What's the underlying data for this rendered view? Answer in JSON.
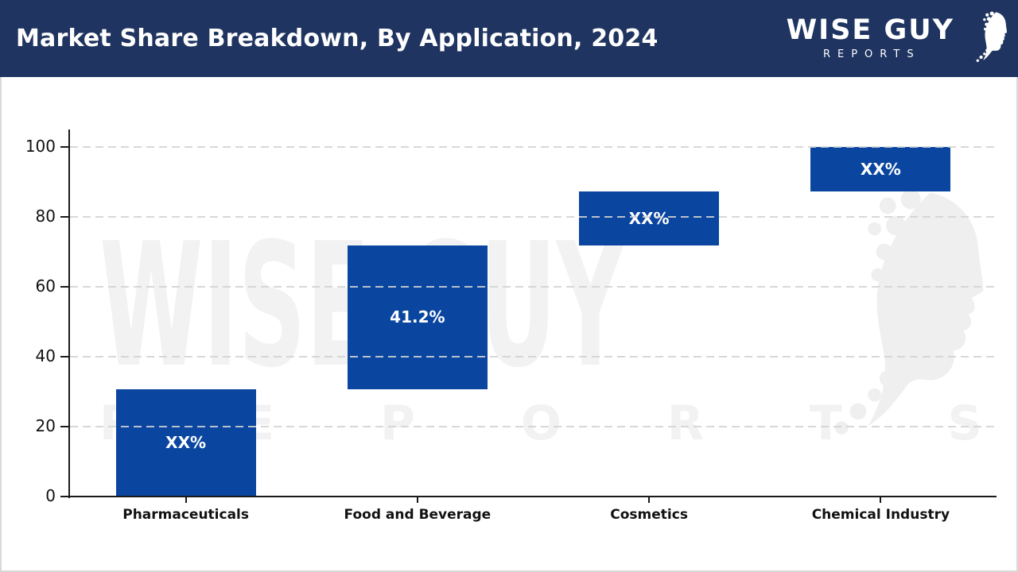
{
  "header": {
    "title": "Market Share Breakdown, By Application, 2024",
    "bg_color": "#1f3460",
    "logo": {
      "wordmark": "WISE GUY",
      "subtext": "REPORTS"
    }
  },
  "watermark": {
    "wordmark": "WISE GUY",
    "subtext": "R E P O R T S"
  },
  "chart_data": {
    "type": "bar",
    "variant": "floating stacked segment bars (waterfall style, one segment per category)",
    "title": "Market Share Breakdown, By Application, 2024",
    "categories": [
      "Pharmaceuticals",
      "Food and Beverage",
      "Cosmetics",
      "Chemical Industry"
    ],
    "series": [
      {
        "name": "Pharmaceuticals",
        "start": 0,
        "end": 30.7,
        "value_label": "XX%"
      },
      {
        "name": "Food and Beverage",
        "start": 30.7,
        "end": 71.9,
        "value_label": "41.2%"
      },
      {
        "name": "Cosmetics",
        "start": 71.9,
        "end": 87.3,
        "value_label": "XX%"
      },
      {
        "name": "Chemical Industry",
        "start": 87.3,
        "end": 100.0,
        "value_label": "XX%"
      }
    ],
    "y_ticks": [
      0,
      20,
      40,
      60,
      80,
      100
    ],
    "ylim": [
      0,
      105
    ],
    "xlabel": "",
    "ylabel": "",
    "grid": "dashed horizontal gridlines drawn over bars",
    "legend": false,
    "bar_color": "#0a46a0",
    "bar_label_color": "#ffffff",
    "axis_color": "#1a1a1a",
    "gridline_color": "#d2d2d2"
  }
}
